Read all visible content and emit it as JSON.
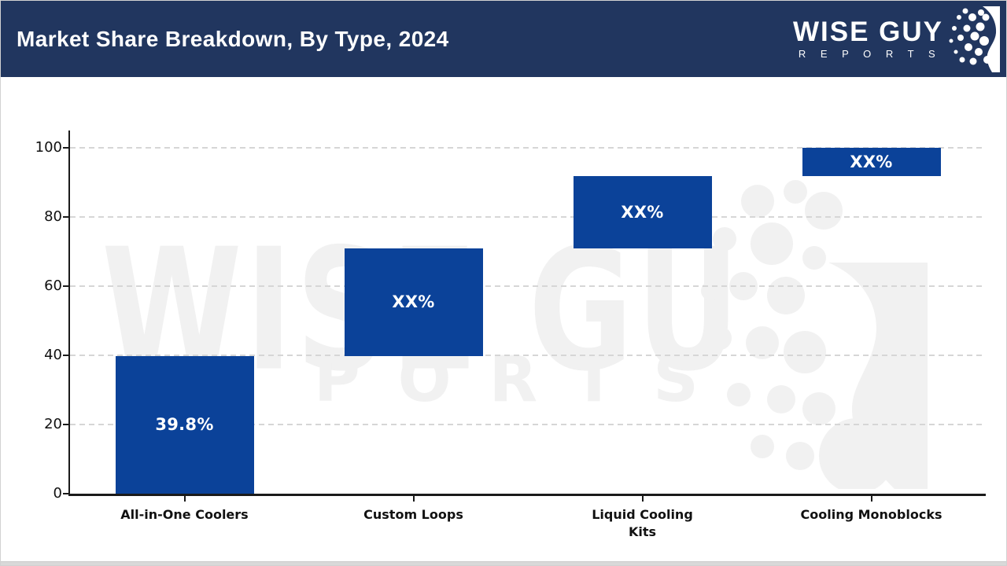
{
  "header": {
    "title": "Market Share Breakdown, By Type, 2024",
    "logo": {
      "line1": "WISE GUY",
      "line2": "R E P O R T S"
    }
  },
  "watermark": {
    "line1": "WISE GU",
    "line2": "PORTS"
  },
  "colors": {
    "header_bg": "#21365f",
    "bar": "#0b4299",
    "bar_label": "#ffffff",
    "gridline": "#d6d6d6",
    "axis": "#1a1a1a",
    "watermark": "#f1f1f1",
    "footer_strip": "#d9d9d9"
  },
  "chart_data": {
    "type": "waterfall-bar",
    "title": "Market Share Breakdown, By Type, 2024",
    "xlabel": "",
    "ylabel": "",
    "categories": [
      "All-in-One Coolers",
      "Custom Loops",
      "Liquid Cooling\nKits",
      "Cooling Monoblocks"
    ],
    "segments": [
      {
        "category": "All-in-One Coolers",
        "label": "39.8%",
        "start": 0,
        "end": 39.8,
        "estimated_increment": 39.8
      },
      {
        "category": "Custom Loops",
        "label": "XX%",
        "start": 39.8,
        "end": 70.9,
        "estimated_increment": 31.1
      },
      {
        "category": "Liquid Cooling Kits",
        "label": "XX%",
        "start": 70.9,
        "end": 91.8,
        "estimated_increment": 20.9
      },
      {
        "category": "Cooling Monoblocks",
        "label": "XX%",
        "start": 91.8,
        "end": 100,
        "estimated_increment": 8.2
      }
    ],
    "yticks": [
      0,
      20,
      40,
      60,
      80,
      100
    ],
    "ylim": [
      0,
      105
    ],
    "grid": {
      "horizontal": true,
      "style": "dashed"
    },
    "legend": "none"
  }
}
